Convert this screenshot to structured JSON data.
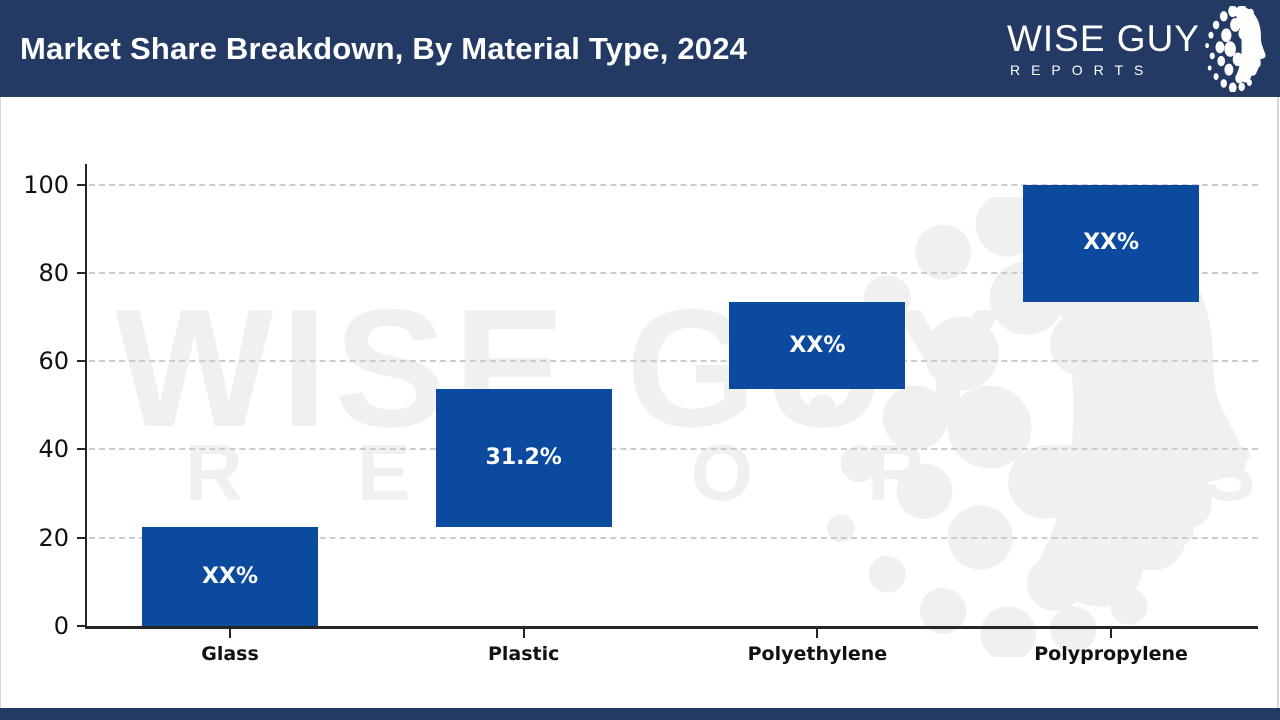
{
  "header": {
    "title": "Market Share Breakdown, By Material Type, 2024",
    "logo": {
      "line1": "WISE GUY",
      "line2": "REPORTS"
    }
  },
  "watermark": {
    "line1": "WISE GUY",
    "line2": "R E P O R T S"
  },
  "colors": {
    "header_bg": "#223a64",
    "footer_bg": "#223a64",
    "bar": "#0b4a9e",
    "bar_label": "#ffffff",
    "grid": "#cccccc",
    "axis": "#262626",
    "text": "#111111",
    "watermark": "#f0f0f0"
  },
  "chart_data": {
    "type": "bar",
    "subtype": "waterfall",
    "title": "Market Share Breakdown, By Material Type, 2024",
    "xlabel": "",
    "ylabel": "",
    "categories": [
      "Glass",
      "Plastic",
      "Polyethylene",
      "Polypropylene"
    ],
    "segments": [
      {
        "category": "Glass",
        "start": 0,
        "end": 22.4,
        "label": "XX%"
      },
      {
        "category": "Plastic",
        "start": 22.4,
        "end": 53.6,
        "label": "31.2%"
      },
      {
        "category": "Polyethylene",
        "start": 53.6,
        "end": 73.5,
        "label": "XX%"
      },
      {
        "category": "Polypropylene",
        "start": 73.5,
        "end": 100,
        "label": "XX%"
      }
    ],
    "ylim": [
      0,
      104.7
    ],
    "yticks": [
      0,
      20,
      40,
      60,
      80,
      100
    ],
    "grid": "horizontal-dashed",
    "legend": "none"
  }
}
